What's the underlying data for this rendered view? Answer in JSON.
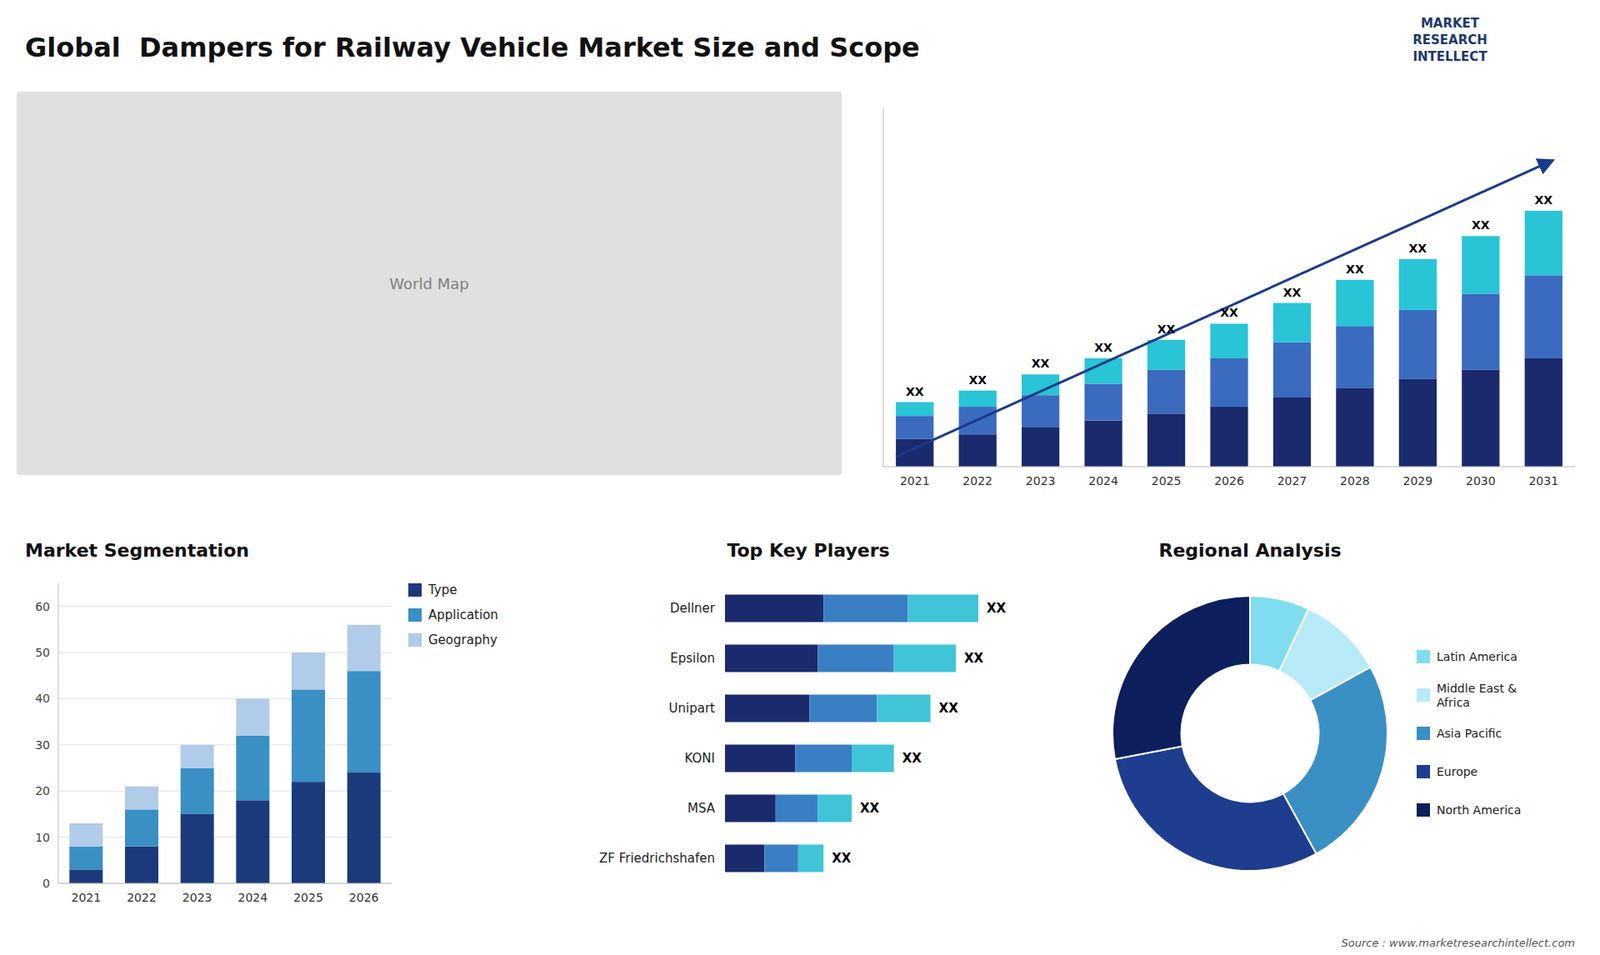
{
  "chart_data": [
    {
      "type": "map",
      "title": "Global  Dampers for Railway Vehicle Market Size and Scope",
      "annotations": [
        "World Map",
        "MARKET\nRESEARCH\nINTELLECT",
        "Source : www.marketresearchintellect.com"
      ]
    },
    {
      "type": "bar",
      "stacked": true,
      "categories": [
        "2021",
        "2022",
        "2023",
        "2024",
        "2025",
        "2026",
        "2027",
        "2028",
        "2029",
        "2030",
        "2031"
      ],
      "series": [
        {
          "color": "#1a2a6c",
          "values": [
            1.2,
            1.4,
            1.7,
            2.0,
            2.3,
            2.6,
            3.0,
            3.4,
            3.8,
            4.2,
            4.7
          ]
        },
        {
          "color": "#3a6bbf",
          "values": [
            1.0,
            1.2,
            1.4,
            1.6,
            1.9,
            2.1,
            2.4,
            2.7,
            3.0,
            3.3,
            3.6
          ]
        },
        {
          "color": "#29c4d6",
          "values": [
            0.6,
            0.7,
            0.9,
            1.1,
            1.3,
            1.5,
            1.7,
            2.0,
            2.2,
            2.5,
            2.8
          ]
        }
      ],
      "ylim": [
        0,
        15.54
      ],
      "tick_labels": "x",
      "annotations": [
        "XX",
        "XX",
        "XX",
        "XX",
        "XX",
        "XX",
        "XX",
        "XX",
        "XX",
        "XX",
        "XX"
      ]
    },
    {
      "type": "bar",
      "stacked": true,
      "title": "Market Segmentation",
      "categories": [
        "2021",
        "2022",
        "2023",
        "2024",
        "2025",
        "2026"
      ],
      "series": [
        {
          "name": "Type",
          "color": "#1a3a7c",
          "values": [
            3,
            8,
            15,
            18,
            22,
            24
          ]
        },
        {
          "name": "Application",
          "color": "#3a8fc4",
          "values": [
            5,
            8,
            10,
            14,
            20,
            22
          ]
        },
        {
          "name": "Geography",
          "color": "#b0cce8",
          "values": [
            5,
            5,
            5,
            8,
            8,
            10
          ]
        }
      ],
      "ylim": [
        0,
        65
      ],
      "yticks": [
        0,
        10,
        20,
        30,
        40,
        50,
        60
      ],
      "grid": true,
      "legend": "right"
    },
    {
      "type": "bar",
      "stacked": true,
      "orientation": "horizontal",
      "title": "Top Key Players",
      "categories": [
        "Dellner",
        "Epsilon",
        "Unipart",
        "KONI",
        "MSA",
        "ZF Friedrichshafen"
      ],
      "series": [
        {
          "color": "#1a2a6c",
          "values": [
            35,
            33,
            30,
            25,
            18,
            14
          ]
        },
        {
          "color": "#3a7fc4",
          "values": [
            30,
            27,
            24,
            20,
            15,
            12
          ]
        },
        {
          "color": "#40c4d8",
          "values": [
            25,
            22,
            19,
            15,
            12,
            9
          ]
        }
      ],
      "xlim": [
        0,
        112.5
      ],
      "tick_labels": "y",
      "annotations": [
        "XX",
        "XX",
        "XX",
        "XX",
        "XX",
        "XX"
      ]
    },
    {
      "type": "pie",
      "title": "Regional Analysis",
      "categories": [
        "Latin America",
        "Middle East &\nAfrica",
        "Asia Pacific",
        "Europe",
        "North America"
      ],
      "values": [
        7,
        10,
        25,
        30,
        28
      ],
      "colors": [
        "#80ddf0",
        "#b8eaf8",
        "#3a8fc4",
        "#1e3d8f",
        "#0d1f5c"
      ],
      "legend": "right"
    }
  ]
}
